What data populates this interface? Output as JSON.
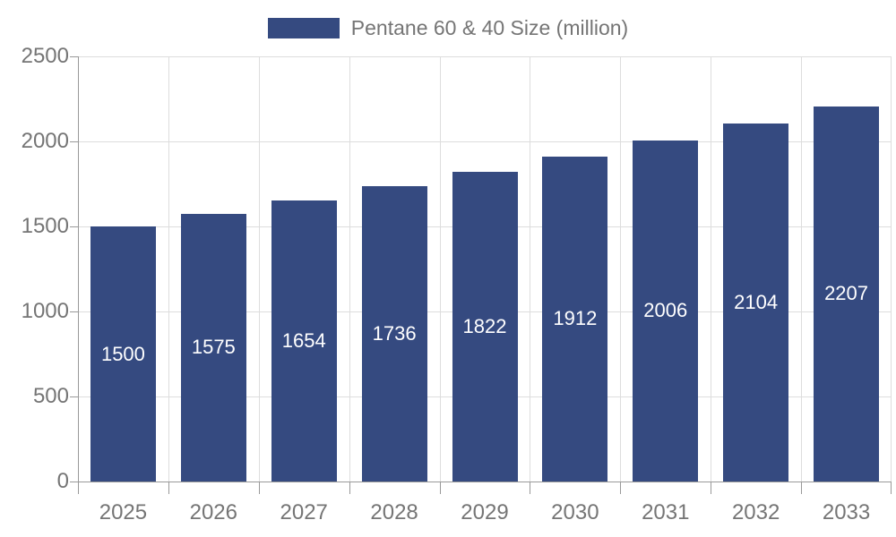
{
  "legend": {
    "label": "Pentane 60 & 40 Size (million)"
  },
  "colors": {
    "bar": "#354a80",
    "grid": "#dddddd",
    "axis": "#999999",
    "text_muted": "#757575",
    "value_label": "#ffffff",
    "background": "#ffffff"
  },
  "chart_data": {
    "type": "bar",
    "title": "",
    "legend": "Pentane 60 & 40 Size (million)",
    "legend_position": "top-center",
    "categories": [
      "2025",
      "2026",
      "2027",
      "2028",
      "2029",
      "2030",
      "2031",
      "2032",
      "2033"
    ],
    "values": [
      1500,
      1575,
      1654,
      1736,
      1822,
      1912,
      2006,
      2104,
      2207
    ],
    "xlabel": "",
    "ylabel": "",
    "ylim": [
      0,
      2500
    ],
    "yticks": [
      0,
      500,
      1000,
      1500,
      2000,
      2500
    ],
    "grid": true,
    "value_labels": "inside-middle"
  }
}
